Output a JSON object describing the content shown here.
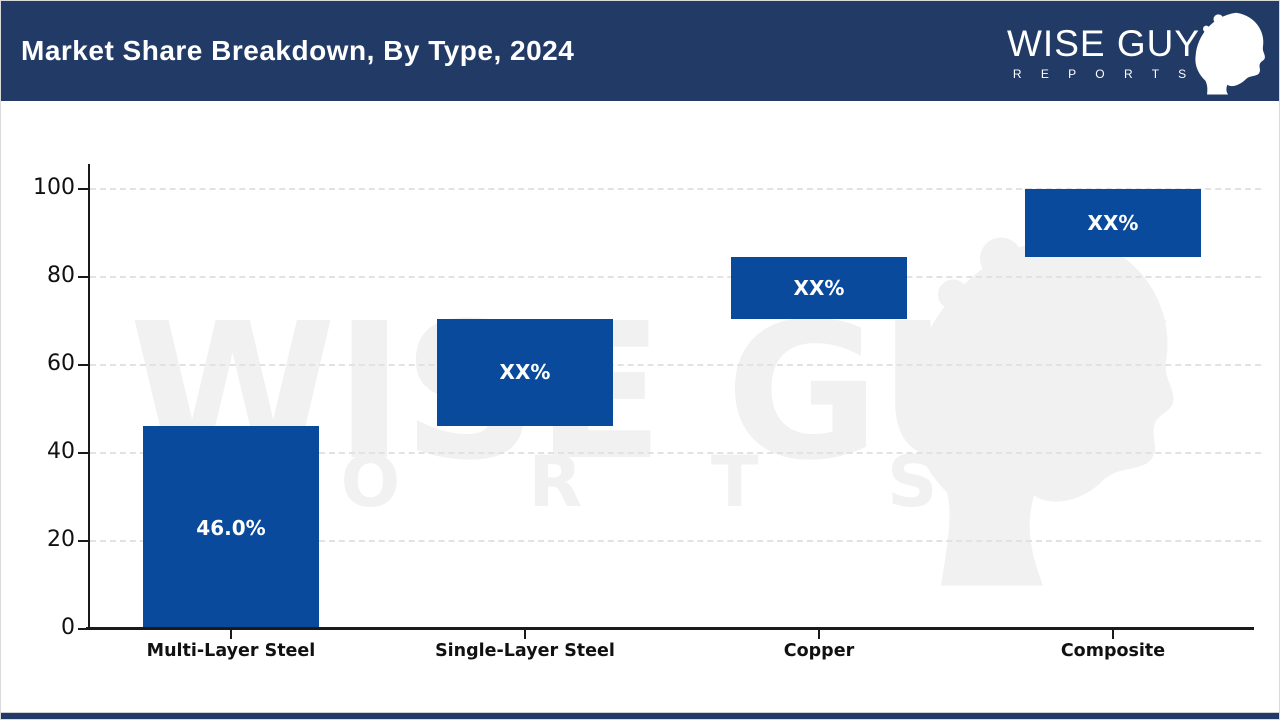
{
  "header": {
    "title": "Market Share Breakdown, By Type, 2024",
    "logo": {
      "name": "WISE GUY",
      "sub": "R E P O R T S"
    },
    "bg_color": "#223a66"
  },
  "watermark": {
    "line1": "WISE GUY",
    "line2": "P O R T S"
  },
  "chart_data": {
    "type": "bar",
    "subtype": "floating-segment-waterfall",
    "title": "Market Share Breakdown, By Type, 2024",
    "categories": [
      "Multi-Layer Steel",
      "Single-Layer Steel",
      "Copper",
      "Composite"
    ],
    "segments": [
      {
        "category": "Multi-Layer Steel",
        "start": 0,
        "end": 46.0,
        "label": "46.0%"
      },
      {
        "category": "Single-Layer Steel",
        "start": 46.0,
        "end": 70.5,
        "label": "XX%"
      },
      {
        "category": "Copper",
        "start": 70.5,
        "end": 84.5,
        "label": "XX%"
      },
      {
        "category": "Composite",
        "start": 84.5,
        "end": 100.0,
        "label": "XX%"
      }
    ],
    "yticks": [
      0,
      20,
      40,
      60,
      80,
      100
    ],
    "ylim": [
      0,
      105
    ],
    "xlabel": "",
    "ylabel": "",
    "grid": "horizontal-dashed",
    "legend": "none",
    "bar_color": "#0a4a9c",
    "bar_label_color": "#ffffff"
  }
}
